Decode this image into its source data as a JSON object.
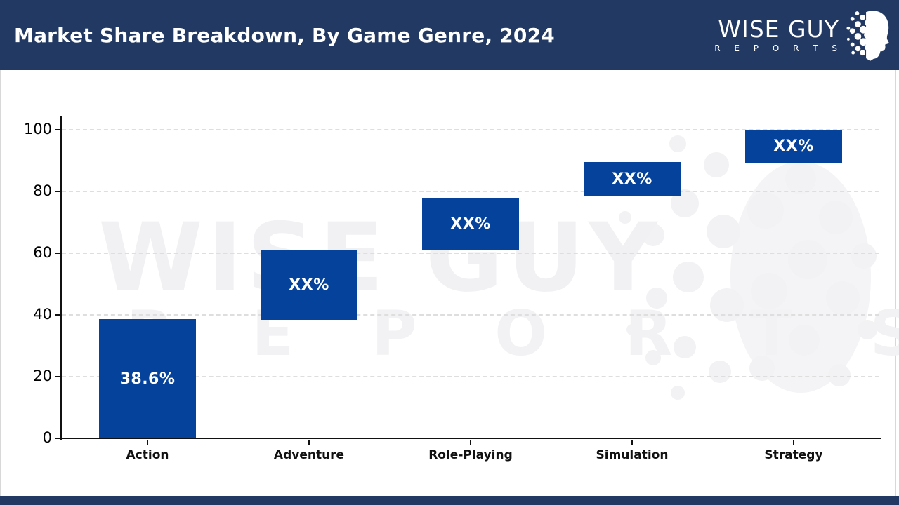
{
  "header": {
    "title": "Market Share Breakdown, By Game Genre, 2024",
    "logo": {
      "name": "Wise Guy Reports",
      "line1": "WISE GUY",
      "line2": "R E P O R T S"
    }
  },
  "watermark": {
    "line1": "WISE GUY",
    "line2": "R E P O R T S"
  },
  "footer": {},
  "colors": {
    "header_bg": "#223a63",
    "footer_bg": "#223a63",
    "bar": "#05429b",
    "bar_label": "#ffffff",
    "grid": "#dedede",
    "axis": "#111111",
    "watermark": "#f2f2f4"
  },
  "chart_data": {
    "type": "bar",
    "subtype": "waterfall",
    "title": "Market Share Breakdown, By Game Genre, 2024",
    "xlabel": "",
    "ylabel": "",
    "ylim": [
      0,
      105
    ],
    "yticks": [
      0,
      20,
      40,
      60,
      80,
      100
    ],
    "grid": "horizontal-dashed",
    "legend": "none",
    "categories": [
      "Action",
      "Adventure",
      "Role-Playing",
      "Simulation",
      "Strategy"
    ],
    "segments": [
      {
        "category": "Action",
        "start": 0,
        "end": 38.6,
        "label": "38.6%"
      },
      {
        "category": "Adventure",
        "start": 38.5,
        "end": 61,
        "label": "XX%"
      },
      {
        "category": "Role-Playing",
        "start": 61,
        "end": 78,
        "label": "XX%"
      },
      {
        "category": "Simulation",
        "start": 78.5,
        "end": 89.5,
        "label": "XX%"
      },
      {
        "category": "Strategy",
        "start": 89.3,
        "end": 100,
        "label": "XX%"
      }
    ]
  }
}
